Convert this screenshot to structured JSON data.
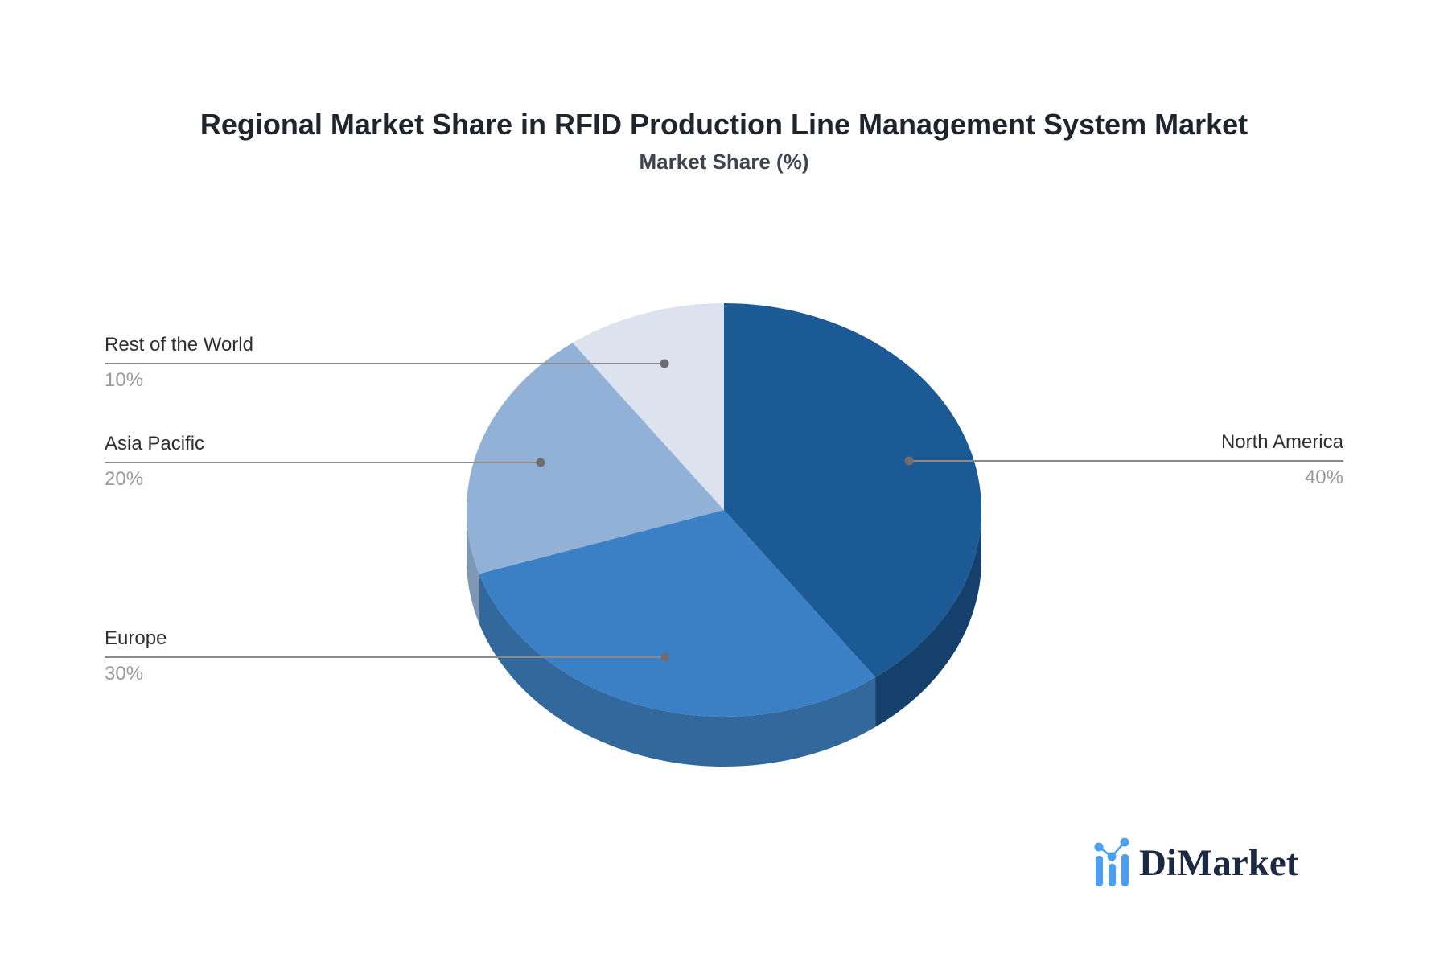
{
  "header": {
    "title": "Regional Market Share in RFID Production Line Management System Market",
    "subtitle": "Market Share (%)"
  },
  "chart_data": {
    "type": "pie",
    "title": "Regional Market Share in RFID Production Line Management System Market",
    "subtitle": "Market Share (%)",
    "unit": "%",
    "categories": [
      "North America",
      "Europe",
      "Asia Pacific",
      "Rest of the World"
    ],
    "values": [
      40,
      30,
      20,
      10
    ],
    "labels_pct": [
      "40%",
      "30%",
      "20%",
      "10%"
    ],
    "colors": [
      "#1c5a95",
      "#3b80c5",
      "#92b1d6",
      "#dce3ee"
    ],
    "side_colors": [
      "#15406b",
      "#33689c",
      "#7d97b4",
      "#c9d2e0"
    ],
    "style": "3d-pie",
    "start_angle_deg": -90,
    "direction": "clockwise",
    "legend_position": "callout-lines",
    "leader_line_color": "#8a8a8a",
    "leader_dot_color": "#6e6e6e"
  },
  "callouts": {
    "north_america": {
      "name": "North America",
      "pct": "40%"
    },
    "europe": {
      "name": "Europe",
      "pct": "30%"
    },
    "asia_pacific": {
      "name": "Asia Pacific",
      "pct": "20%"
    },
    "rest_of_world": {
      "name": "Rest of the World",
      "pct": "10%"
    }
  },
  "logo": {
    "text": "DiMarket",
    "icon": "bar-line-chart-icon",
    "icon_color": "#4aa0ee",
    "text_color": "#1b2a42"
  }
}
